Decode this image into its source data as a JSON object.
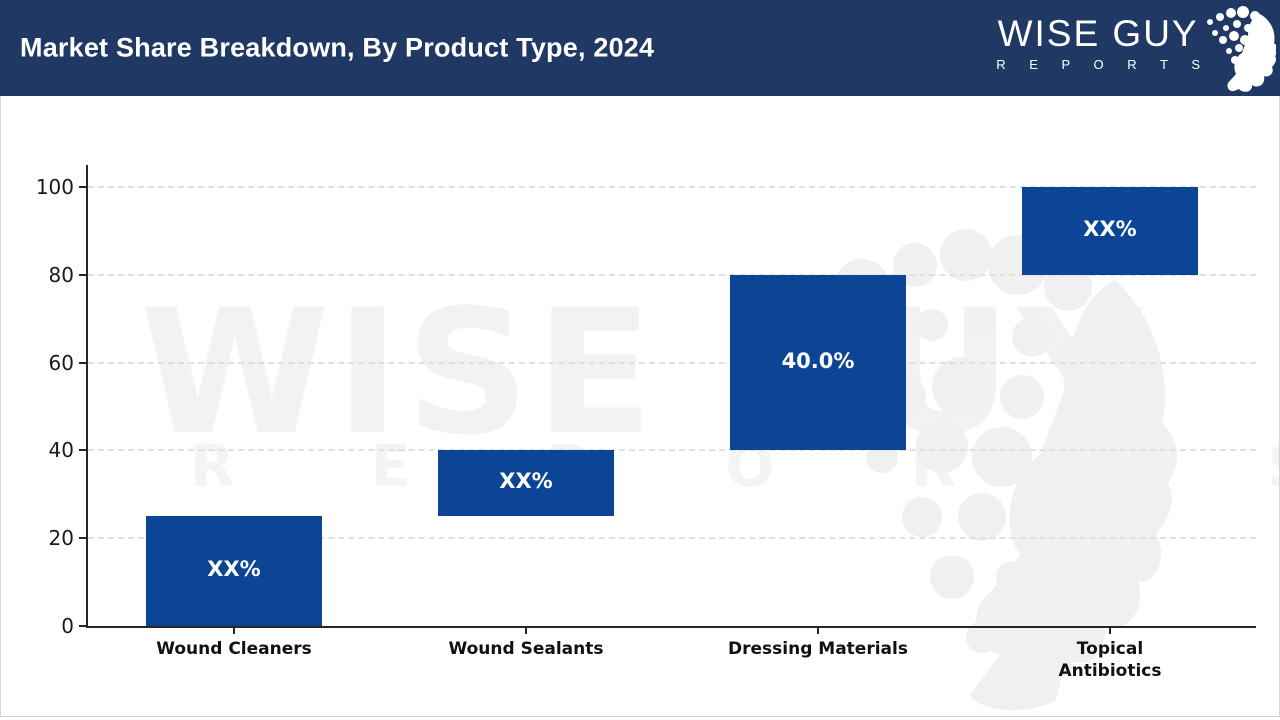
{
  "header": {
    "title": "Market Share Breakdown, By Product Type, 2024",
    "bg_color": "#203864",
    "logo": {
      "line1": "WISE GUY",
      "line2": "R E P O R T S"
    }
  },
  "watermark": {
    "line1": "WISE GUY",
    "line2": "R E P O R T S"
  },
  "chart_data": {
    "type": "bar",
    "subtype": "waterfall",
    "title": "Market Share Breakdown, By Product Type, 2024",
    "categories": [
      "Wound Cleaners",
      "Wound Sealants",
      "Dressing Materials",
      "Topical Antibiotics"
    ],
    "category_lines": [
      [
        "Wound Cleaners"
      ],
      [
        "Wound Sealants"
      ],
      [
        "Dressing Materials"
      ],
      [
        "Topical",
        "Antibiotics"
      ]
    ],
    "segments": [
      {
        "category": "Wound Cleaners",
        "from": 0,
        "to": 25,
        "value_pct": 25,
        "label": "XX%"
      },
      {
        "category": "Wound Sealants",
        "from": 25,
        "to": 40,
        "value_pct": 15,
        "label": "XX%"
      },
      {
        "category": "Dressing Materials",
        "from": 40,
        "to": 80,
        "value_pct": 40,
        "label": "40.0%"
      },
      {
        "category": "Topical Antibiotics",
        "from": 80,
        "to": 100,
        "value_pct": 20,
        "label": "XX%"
      }
    ],
    "bar_color": "#0d4596",
    "bar_label_color": "#ffffff",
    "axis_color": "#262626",
    "grid_color": "#e0e0e0",
    "ylim": [
      0,
      100
    ],
    "yticks": [
      0,
      20,
      40,
      60,
      80,
      100
    ],
    "grid": "horizontal-dashed",
    "legend": "none",
    "xlabel": "",
    "ylabel": ""
  }
}
